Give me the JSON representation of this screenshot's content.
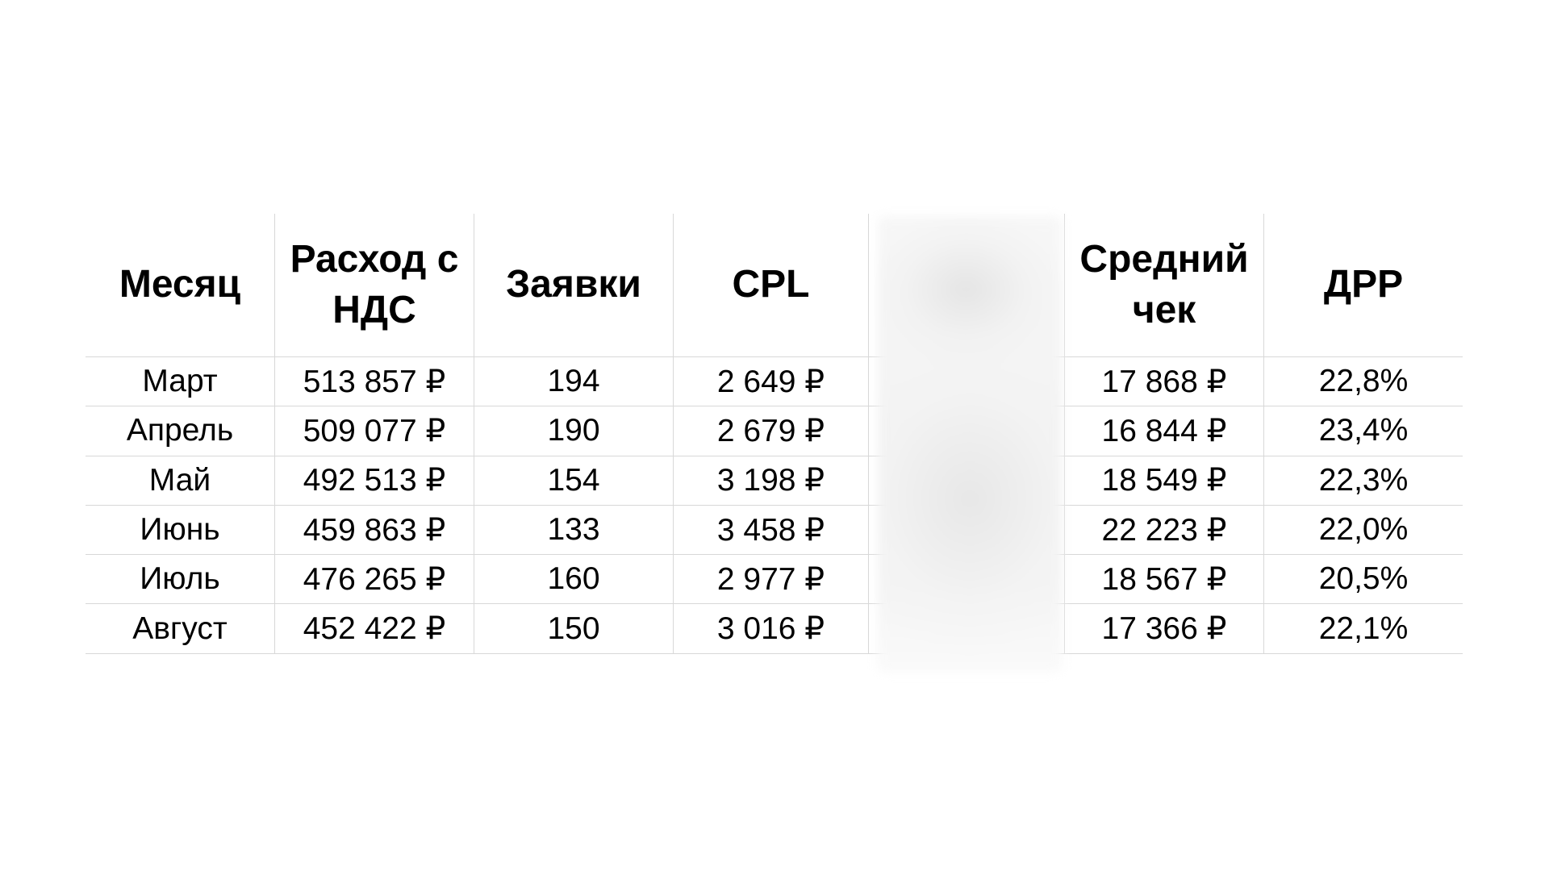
{
  "chart_data": {
    "type": "table",
    "title": "",
    "columns": [
      "Месяц",
      "Расход с НДС",
      "Заявки",
      "CPL",
      "",
      "Средний чек",
      "ДРР"
    ],
    "rows": [
      [
        "Март",
        "513 857 ₽",
        "194",
        "2 649 ₽",
        "",
        "17 868 ₽",
        "22,8%"
      ],
      [
        "Апрель",
        "509 077 ₽",
        "190",
        "2 679 ₽",
        "",
        "16 844 ₽",
        "23,4%"
      ],
      [
        "Май",
        "492 513 ₽",
        "154",
        "3 198 ₽",
        "",
        "18 549 ₽",
        "22,3%"
      ],
      [
        "Июнь",
        "459 863 ₽",
        "133",
        "3 458 ₽",
        "",
        "22 223 ₽",
        "22,0%"
      ],
      [
        "Июль",
        "476 265 ₽",
        "160",
        "2 977 ₽",
        "",
        "18 567 ₽",
        "20,5%"
      ],
      [
        "Август",
        "452 422 ₽",
        "150",
        "3 016 ₽",
        "",
        "17 366 ₽",
        "22,1%"
      ]
    ],
    "redacted_column_index": 4,
    "layout_hints": {
      "grid": "light horizontal and vertical separators, no outer frame",
      "header_rows": 1,
      "cell_alignment": "center"
    }
  },
  "colors": {
    "background": "#ffffff",
    "text": "#000000",
    "gridline": "#d8d8d8",
    "redaction_fill": "#f3f3f3"
  }
}
